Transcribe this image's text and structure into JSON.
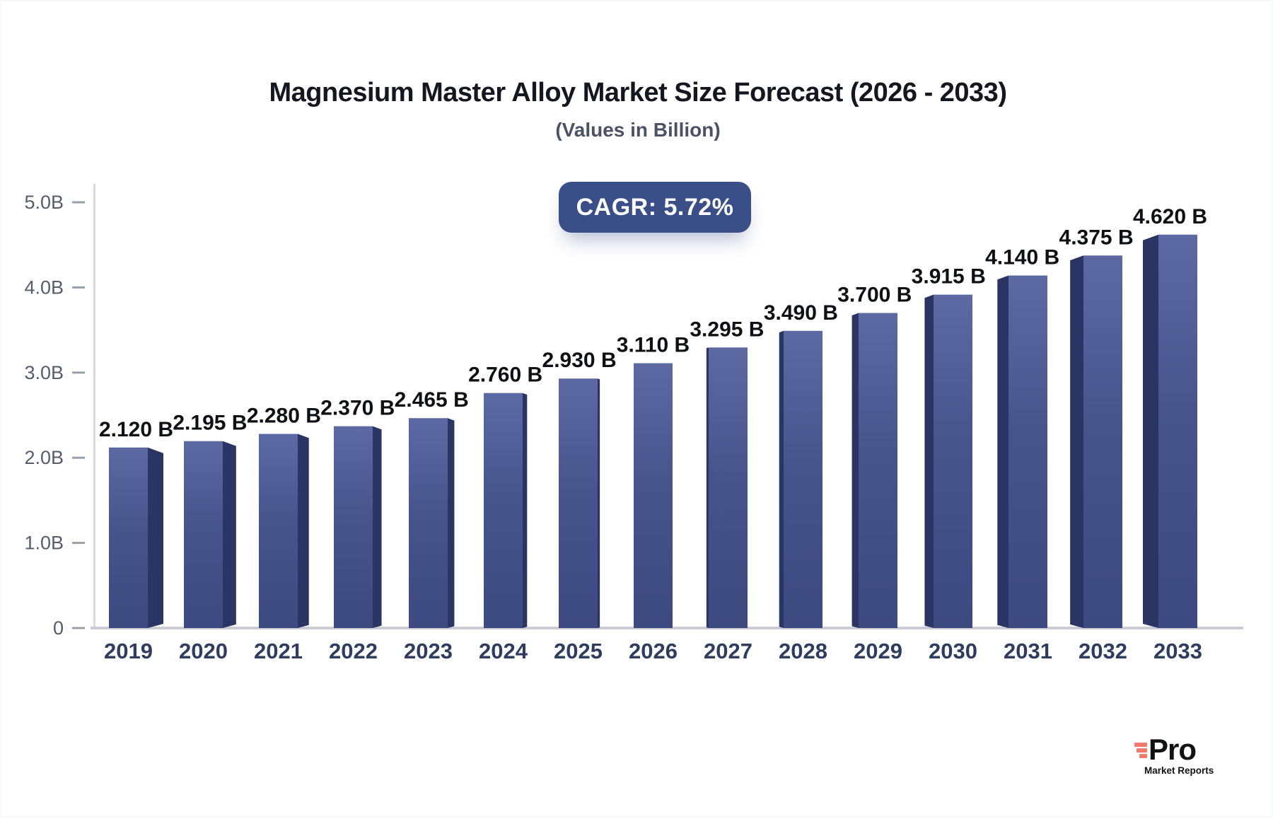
{
  "title": "Magnesium Master Alloy Market Size Forecast (2026 - 2033)",
  "subtitle": "(Values in Billion)",
  "badge": {
    "label": "CAGR: 5.72%"
  },
  "logo": {
    "name": "Pro",
    "tagline": "Market Reports"
  },
  "chart_data": {
    "type": "bar",
    "style": "pseudo-3d-perspective-columns",
    "title": "Magnesium Master Alloy Market Size Forecast (2026 - 2033)",
    "subtitle": "(Values in Billion)",
    "cagr": "CAGR: 5.72%",
    "xlabel": "",
    "ylabel": "",
    "ylim": [
      0,
      5
    ],
    "grid": false,
    "legend": false,
    "categories": [
      "2019",
      "2020",
      "2021",
      "2022",
      "2023",
      "2024",
      "2025",
      "2026",
      "2027",
      "2028",
      "2029",
      "2030",
      "2031",
      "2032",
      "2033"
    ],
    "values": [
      2.12,
      2.195,
      2.28,
      2.37,
      2.465,
      2.76,
      2.93,
      3.11,
      3.295,
      3.49,
      3.7,
      3.915,
      4.14,
      4.375,
      4.62
    ],
    "value_labels": [
      "2.120 B",
      "2.195 B",
      "2.280 B",
      "2.370 B",
      "2.465 B",
      "2.760 B",
      "2.930 B",
      "3.110 B",
      "3.295 B",
      "3.490 B",
      "3.700 B",
      "3.915 B",
      "4.140 B",
      "4.375 B",
      "4.620 B"
    ],
    "yticks": [
      {
        "value": 0,
        "label": "0"
      },
      {
        "value": 1,
        "label": "1.0B"
      },
      {
        "value": 2,
        "label": "2.0B"
      },
      {
        "value": 3,
        "label": "3.0B"
      },
      {
        "value": 4,
        "label": "4.0B"
      },
      {
        "value": 5,
        "label": "5.0B"
      }
    ],
    "colors": {
      "bar_face_top": "#5d69a3",
      "bar_face_mid": "#47548c",
      "bar_face_bottom": "#3d4a80",
      "bar_side": "#2b3564",
      "badge_bg": "#3a4e87",
      "badge_text": "#ffffff",
      "axis_line": "#d9dae2",
      "baseline": "#ccccd6",
      "tick": "#9aa0ab",
      "tick_label": "#555d6b",
      "year_label": "#2e3d5e",
      "data_label": "#0e1015",
      "logo_accent": "#f2796b"
    }
  }
}
